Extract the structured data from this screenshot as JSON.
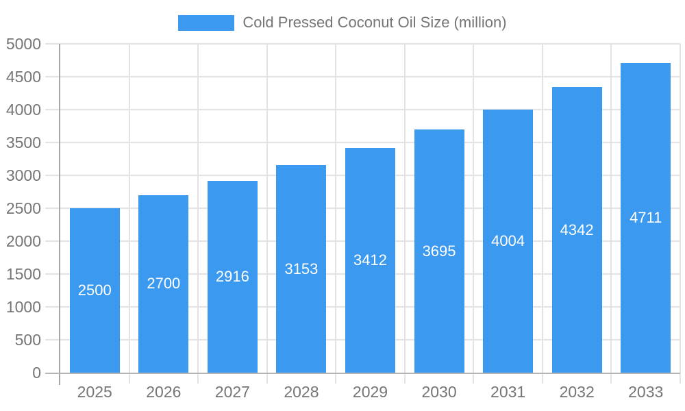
{
  "chart_data": {
    "type": "bar",
    "title": "Cold Pressed Coconut Oil Size (million)",
    "categories": [
      "2025",
      "2026",
      "2027",
      "2028",
      "2029",
      "2030",
      "2031",
      "2032",
      "2033"
    ],
    "values": [
      2500,
      2700,
      2916,
      3153,
      3412,
      3695,
      4004,
      4342,
      4711
    ],
    "series": [
      {
        "name": "Cold Pressed Coconut Oil Size (million)",
        "values": [
          2500,
          2700,
          2916,
          3153,
          3412,
          3695,
          4004,
          4342,
          4711
        ]
      }
    ],
    "xlabel": "",
    "ylabel": "",
    "ylim": [
      0,
      5000
    ],
    "ytick_step": 500,
    "yticks": [
      "0",
      "500",
      "1000",
      "1500",
      "2000",
      "2500",
      "3000",
      "3500",
      "4000",
      "4500",
      "5000"
    ],
    "grid": true,
    "legend_position": "top-center",
    "colors": {
      "bar": "#3B99F0",
      "value_label": "#ffffff",
      "axis_text": "#757575",
      "gridline": "#e3e3e3",
      "y_axis_line": "#a6a6a6",
      "x_axis_line": "#b5b5b5"
    }
  }
}
